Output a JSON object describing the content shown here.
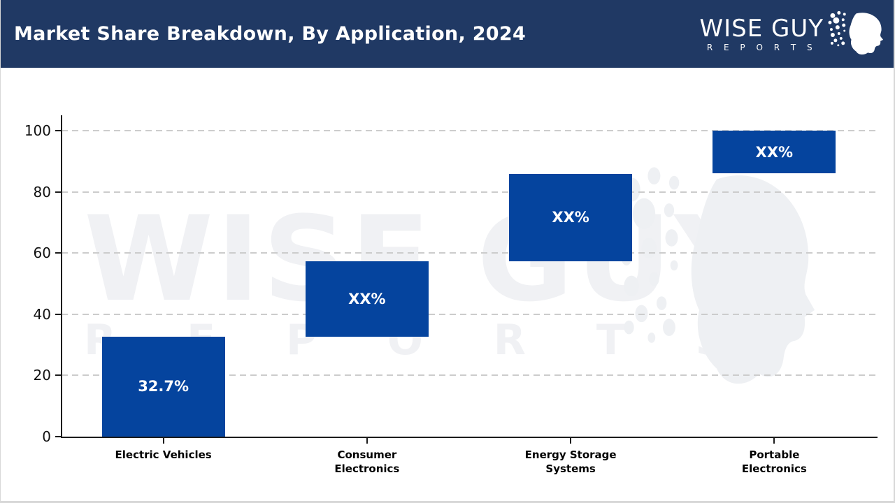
{
  "header": {
    "title": "Market Share Breakdown, By Application, 2024",
    "logo": {
      "line1": "WISE GUY",
      "line2": "R E P O R T S"
    }
  },
  "watermark": {
    "line1": "WISE GUY",
    "line2": "R E P O R T S"
  },
  "colors": {
    "header_bg": "#203964",
    "bar_blue": "#05449e",
    "gridline": "#cccccc",
    "axis": "#1c1c1c",
    "watermark_gray": "#f0f1f4"
  },
  "chart_data": {
    "type": "bar",
    "subtype": "waterfall",
    "title": "Market Share Breakdown, By Application, 2024",
    "categories": [
      "Electric Vehicles",
      "Consumer Electronics",
      "Energy Storage Systems",
      "Portable Electronics"
    ],
    "category_label_lines": [
      "Electric Vehicles",
      "Consumer\nElectronics",
      "Energy Storage\nSystems",
      "Portable\nElectronics"
    ],
    "segments": [
      {
        "category": "Electric Vehicles",
        "start": 0,
        "end": 32.7,
        "label": "32.7%"
      },
      {
        "category": "Consumer Electronics",
        "start": 32.7,
        "end": 57.3,
        "label": "XX%"
      },
      {
        "category": "Energy Storage Systems",
        "start": 57.3,
        "end": 85.9,
        "label": "XX%"
      },
      {
        "category": "Portable Electronics",
        "start": 86.0,
        "end": 100,
        "label": "XX%"
      }
    ],
    "ylim": [
      0,
      100
    ],
    "yticks": [
      0,
      20,
      40,
      60,
      80,
      100
    ],
    "xlabel": "",
    "ylabel": "",
    "grid": "dashed-horizontal",
    "legend": null
  }
}
